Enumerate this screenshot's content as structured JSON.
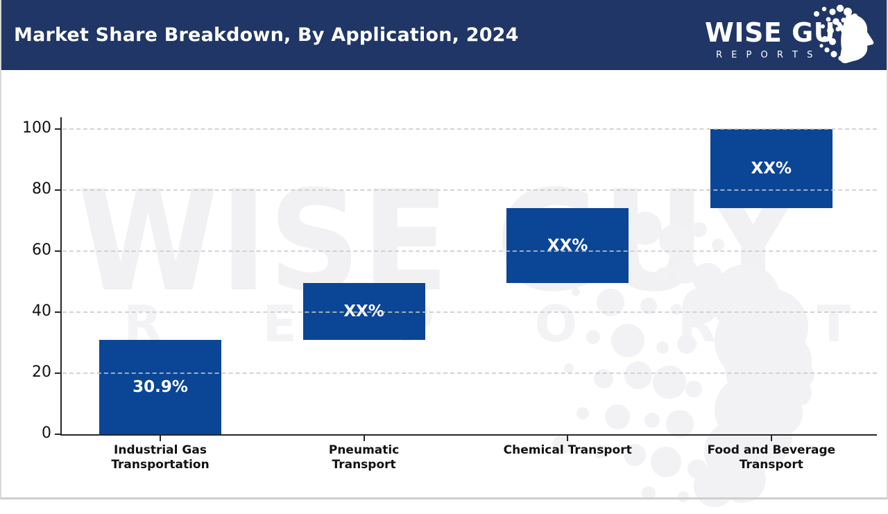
{
  "header": {
    "title": "Market Share Breakdown, By Application, 2024",
    "logo_line1": "WISE GUY",
    "logo_line2": "R E P O R T S"
  },
  "watermark": {
    "big": "WISE GUY",
    "small": "R E P O R T S"
  },
  "colors": {
    "header_bg": "#1f3666",
    "bar": "#0b4596",
    "grid_dash": "#c8c8c8",
    "axis": "#262626",
    "watermark_gray": "#f2f2f4"
  },
  "chart_data": {
    "type": "bar",
    "subtype": "waterfall",
    "title": "Market Share Breakdown, By Application, 2024",
    "xlabel": "",
    "ylabel": "",
    "categories": [
      "Industrial Gas Transportation",
      "Pneumatic Transport",
      "Chemical Transport",
      "Food and Beverage Transport"
    ],
    "category_lines": [
      [
        "Industrial Gas",
        "Transportation"
      ],
      [
        "Pneumatic",
        "Transport"
      ],
      [
        "Chemical Transport"
      ],
      [
        "Food and Beverage",
        "Transport"
      ]
    ],
    "segments": [
      {
        "category": "Industrial Gas Transportation",
        "start": 0,
        "end": 30.9,
        "value_label": "30.9%"
      },
      {
        "category": "Pneumatic Transport",
        "start": 30.9,
        "end": 49.4,
        "value_label": "XX%"
      },
      {
        "category": "Chemical Transport",
        "start": 49.4,
        "end": 74.1,
        "value_label": "XX%"
      },
      {
        "category": "Food and Beverage Transport",
        "start": 74.1,
        "end": 100,
        "value_label": "XX%"
      }
    ],
    "yticks": [
      0,
      20,
      40,
      60,
      80,
      100
    ],
    "ylim": [
      0,
      100
    ],
    "grid": "horizontal-dashed-over-bars",
    "legend": "none",
    "bar_color": "#0b4596"
  }
}
